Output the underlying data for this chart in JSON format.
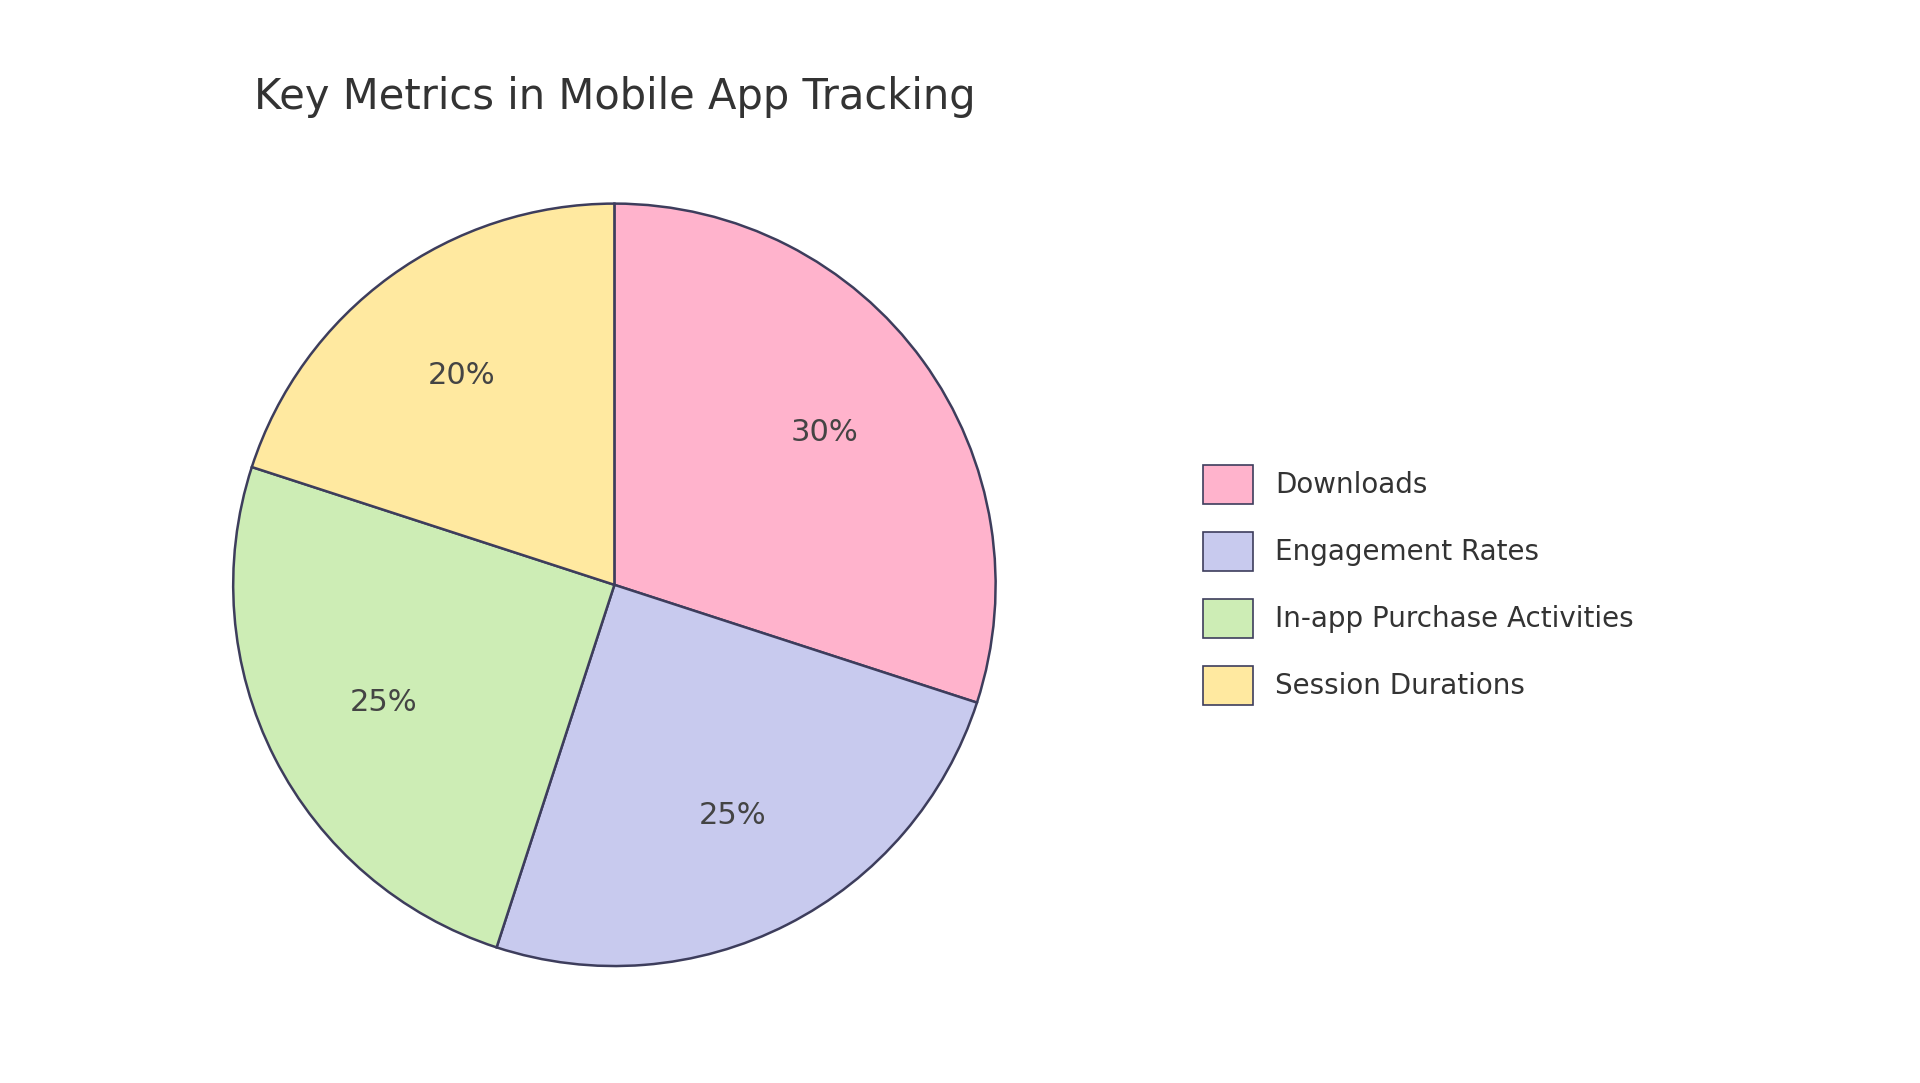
{
  "title": "Key Metrics in Mobile App Tracking",
  "title_fontsize": 30,
  "title_color": "#333333",
  "labels": [
    "Downloads",
    "Engagement Rates",
    "In-app Purchase Activities",
    "Session Durations"
  ],
  "values": [
    30,
    25,
    25,
    20
  ],
  "colors": [
    "#FFB3CC",
    "#C8CAEE",
    "#CDEDB5",
    "#FFE9A0"
  ],
  "autopct_fontsize": 22,
  "autopct_color": "#444444",
  "legend_fontsize": 20,
  "edge_color": "#3d3d5c",
  "edge_linewidth": 1.8,
  "background_color": "#FFFFFF",
  "startangle": 90,
  "pctdistance": 0.68
}
